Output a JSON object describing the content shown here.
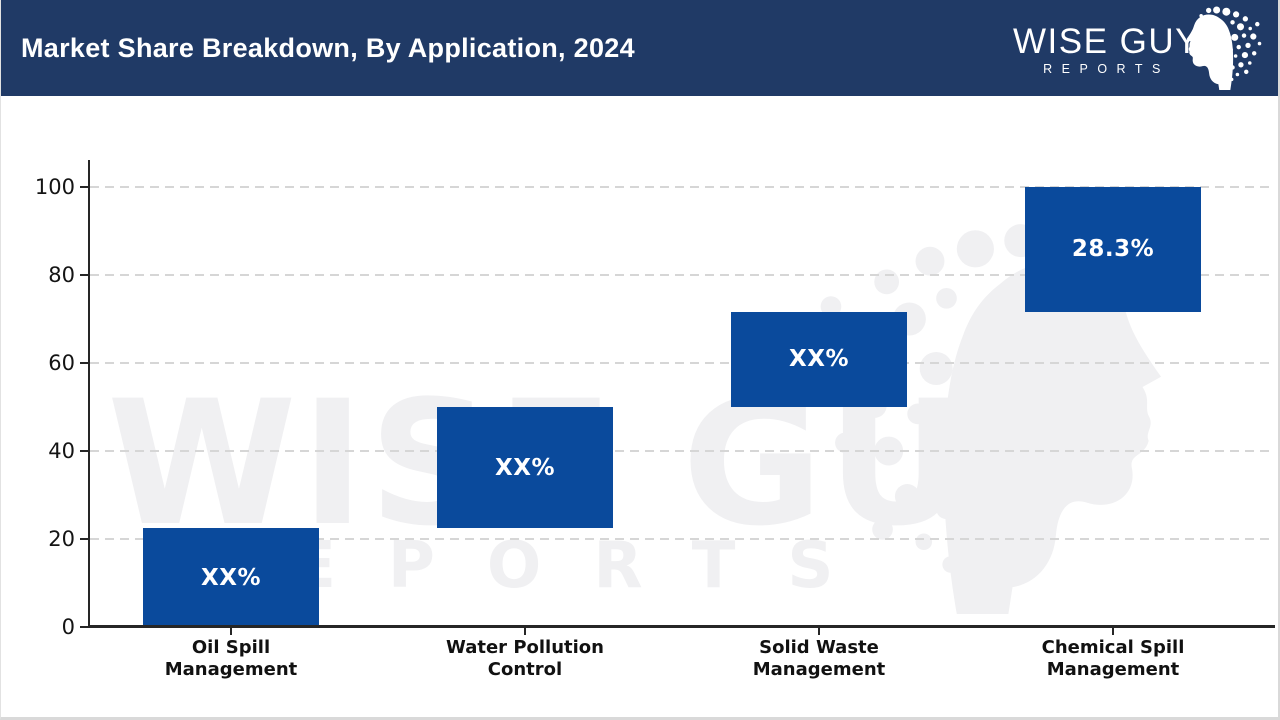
{
  "page": {
    "background": "#ffffff",
    "border_color": "#d9d9d9"
  },
  "header": {
    "background": "#203a66",
    "title": "Market Share Breakdown, By Application, 2024",
    "logo": {
      "wordmark": "WISE GUY",
      "subtext": "REPORTS"
    }
  },
  "watermark": {
    "wordmark": "WISE GUY",
    "subtext": "REPORTS",
    "color": "#f0f0f2"
  },
  "chart_data": {
    "type": "bar",
    "subtype": "floating-segment-waterfall",
    "title": "Market Share Breakdown, By Application, 2024",
    "categories": [
      "Oil Spill Management",
      "Water Pollution Control",
      "Solid Waste Management",
      "Chemical Spill Management"
    ],
    "category_lines": [
      [
        "Oil Spill",
        "Management"
      ],
      [
        "Water Pollution",
        "Control"
      ],
      [
        "Solid Waste",
        "Management"
      ],
      [
        "Chemical Spill",
        "Management"
      ]
    ],
    "segments": [
      {
        "category": "Oil Spill Management",
        "start": 0,
        "end": 22.5,
        "value": 22.5,
        "label": "XX%"
      },
      {
        "category": "Water Pollution Control",
        "start": 22.5,
        "end": 50,
        "value": 27.5,
        "label": "XX%"
      },
      {
        "category": "Solid Waste Management",
        "start": 50,
        "end": 71.7,
        "value": 21.7,
        "label": "XX%"
      },
      {
        "category": "Chemical Spill Management",
        "start": 71.7,
        "end": 100,
        "value": 28.3,
        "label": "28.3%"
      }
    ],
    "ylim": [
      0,
      100
    ],
    "yticks": [
      0,
      20,
      40,
      60,
      80,
      100
    ],
    "xlabel": "",
    "ylabel": "",
    "grid": "horizontal-dashed",
    "legend": false,
    "bar_color": "#0a4a9c",
    "bar_label_color": "#ffffff",
    "axis_color": "#262626",
    "tick_label_color": "#141414",
    "gridline_color": "#d6d6d6"
  }
}
